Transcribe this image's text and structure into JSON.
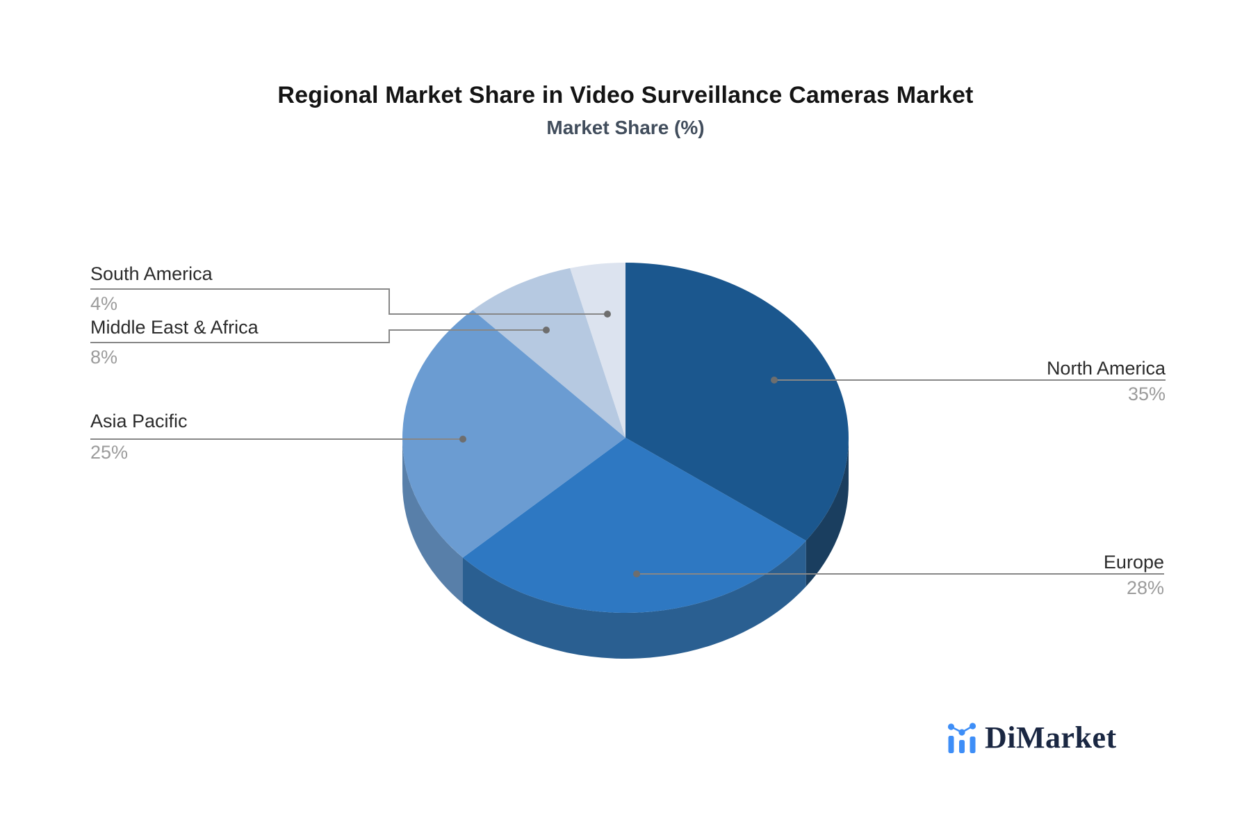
{
  "title": "Regional Market Share in Video Surveillance Cameras Market",
  "subtitle": "Market Share (%)",
  "logo": {
    "text": "DiMarket",
    "icon_color": "#3e8ef7",
    "text_color": "#1a2742"
  },
  "callout_style": {
    "line_color": "#878787",
    "dot_color": "#6e6e6e",
    "label_color": "#2b2b2b",
    "value_color": "#9b9b9b"
  },
  "chart_data": {
    "type": "pie",
    "title": "Regional Market Share in Video Surveillance Cameras Market",
    "subtitle": "Market Share (%)",
    "unit": "%",
    "effect_3d": true,
    "start_angle_deg": -90,
    "direction": "clockwise",
    "legend_position": "callout-labels",
    "labels": [
      "North America",
      "Europe",
      "Asia Pacific",
      "Middle East & Africa",
      "South America"
    ],
    "values": [
      35,
      28,
      25,
      8,
      4
    ],
    "display_values": [
      "35%",
      "28%",
      "25%",
      "8%",
      "4%"
    ],
    "colors": [
      "#1b578e",
      "#2e78c2",
      "#6b9cd2",
      "#b6c9e1",
      "#dce3ef"
    ],
    "side_colors": [
      "#1a3e5f",
      "#2a5f91",
      "#587fa9",
      "#8ea7c2",
      "#b4bfd1"
    ]
  }
}
